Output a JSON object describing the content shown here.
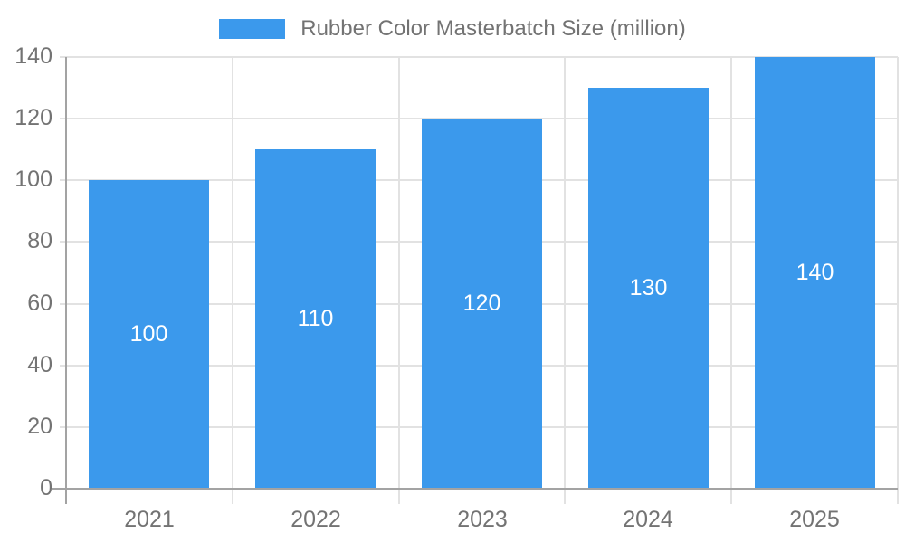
{
  "chart_data": {
    "type": "bar",
    "title": "",
    "legend": {
      "label": "Rubber Color Masterbatch Size (million)",
      "position": "top"
    },
    "categories": [
      "2021",
      "2022",
      "2023",
      "2024",
      "2025"
    ],
    "values": [
      100,
      110,
      120,
      130,
      140
    ],
    "value_labels": [
      "100",
      "110",
      "120",
      "130",
      "140"
    ],
    "value_label_position": "center-of-bar",
    "xlabel": "",
    "ylabel": "",
    "ylim": [
      0,
      140
    ],
    "yticks": [
      0,
      20,
      40,
      60,
      80,
      100,
      120,
      140
    ],
    "ytick_labels": [
      "0",
      "20",
      "40",
      "60",
      "80",
      "100",
      "120",
      "140"
    ],
    "grid": true,
    "legend_position": "top-center",
    "colors": {
      "bar": "#3B99EC",
      "bar_value_label": "#FFFFFF",
      "grid": "#E2E2E2",
      "axis": "#A3A3A3",
      "tick_text": "#737373",
      "legend_text": "#737373",
      "background": "#FFFFFF"
    }
  }
}
